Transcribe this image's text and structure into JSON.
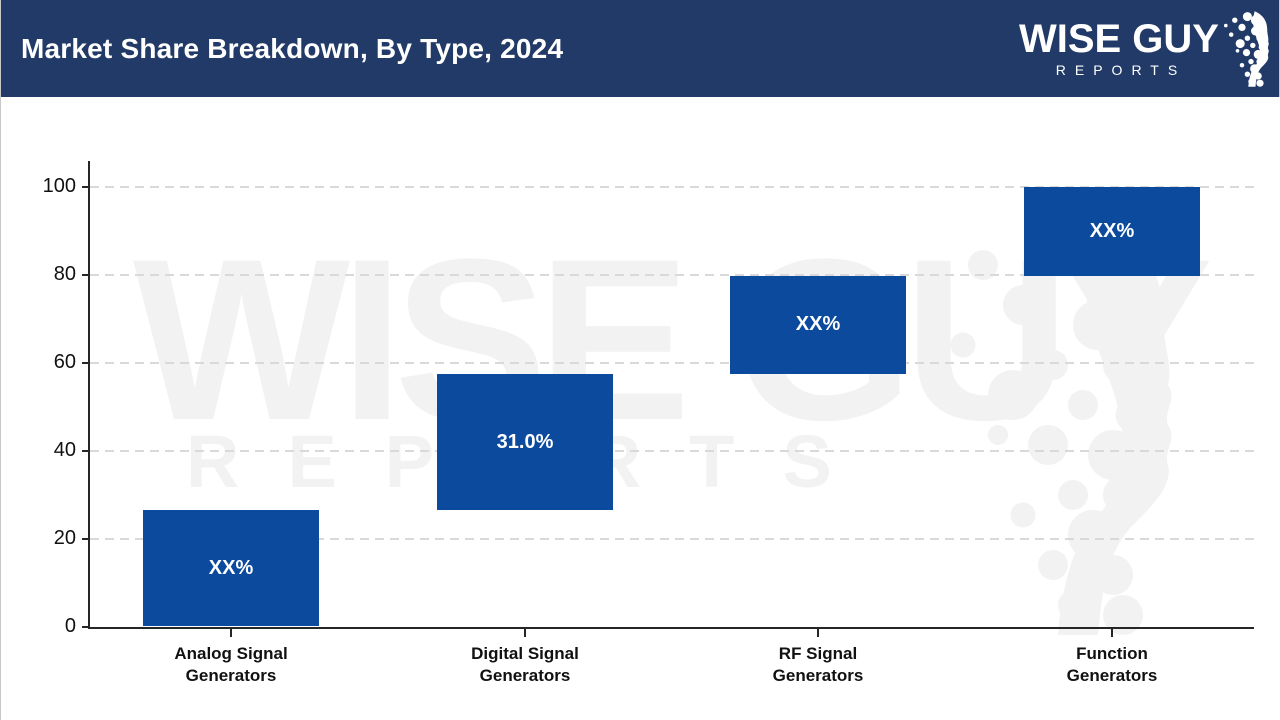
{
  "header": {
    "title": "Market Share Breakdown, By Type, 2024",
    "logo": {
      "name": "WISE GUY",
      "tagline": "REPORTS"
    }
  },
  "watermark": {
    "name": "WISE GUY",
    "tagline": "REPORTS"
  },
  "colors": {
    "header_bg": "#223a67",
    "bar_fill": "#0c4a9e",
    "bar_label": "#ffffff",
    "grid": "#d9d9d9",
    "axis": "#262626",
    "tick_label": "#111111",
    "category_label": "#111111",
    "watermark": "#f2f2f2"
  },
  "chart_data": {
    "type": "bar",
    "subtype": "waterfall",
    "title": "Market Share Breakdown, By Type, 2024",
    "xlabel": "",
    "ylabel": "",
    "ylim": [
      0,
      100
    ],
    "yticks": [
      0,
      20,
      40,
      60,
      80,
      100
    ],
    "grid": "horizontal-dashed",
    "legend": "none",
    "categories": [
      "Analog Signal\nGenerators",
      "Digital Signal\nGenerators",
      "RF Signal\nGenerators",
      "Function\nGenerators"
    ],
    "segments": [
      {
        "category": "Analog Signal Generators",
        "start": 0,
        "end": 26.4,
        "value": 26.4,
        "label": "XX%"
      },
      {
        "category": "Digital Signal Generators",
        "start": 26.4,
        "end": 57.4,
        "value": 31.0,
        "label": "31.0%"
      },
      {
        "category": "RF Signal Generators",
        "start": 57.4,
        "end": 79.7,
        "value": 22.3,
        "label": "XX%"
      },
      {
        "category": "Function Generators",
        "start": 79.7,
        "end": 100,
        "value": 20.3,
        "label": "XX%"
      }
    ]
  }
}
